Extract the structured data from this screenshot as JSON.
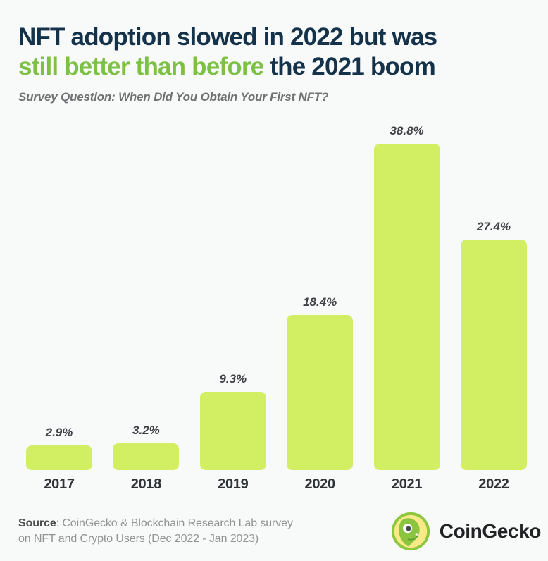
{
  "header": {
    "title_line1": "NFT adoption slowed in 2022 but was",
    "title_highlight": "still better than before",
    "title_line2_rest": " the 2021 boom",
    "subtitle": "Survey Question: When Did You Obtain Your First NFT?"
  },
  "chart_data": {
    "type": "bar",
    "title": "NFT adoption slowed in 2022 but was still better than before the 2021 boom",
    "subtitle": "Survey Question: When Did You Obtain Your First NFT?",
    "categories": [
      "2017",
      "2018",
      "2019",
      "2020",
      "2021",
      "2022"
    ],
    "values": [
      2.9,
      3.2,
      9.3,
      18.4,
      38.8,
      27.4
    ],
    "value_labels": [
      "2.9%",
      "3.2%",
      "9.3%",
      "18.4%",
      "38.8%",
      "27.4%"
    ],
    "xlabel": "",
    "ylabel": "",
    "ylim": [
      0,
      42
    ],
    "grid": false,
    "legend": false,
    "bar_color": "#d2ef64"
  },
  "footer": {
    "source_label": "Source",
    "source_line1": ": CoinGecko & Blockchain Research Lab survey",
    "source_line2": "on NFT and Crypto Users (Dec 2022 - Jan 2023)",
    "brand_name": "CoinGecko"
  },
  "colors": {
    "background": "#f8f9f9",
    "navy": "#14324a",
    "green": "#7cc144",
    "bar": "#d2ef64",
    "logo_ring": "#8dc63f",
    "logo_inner": "#f9e988",
    "logo_gecko": "#8bc53f"
  }
}
